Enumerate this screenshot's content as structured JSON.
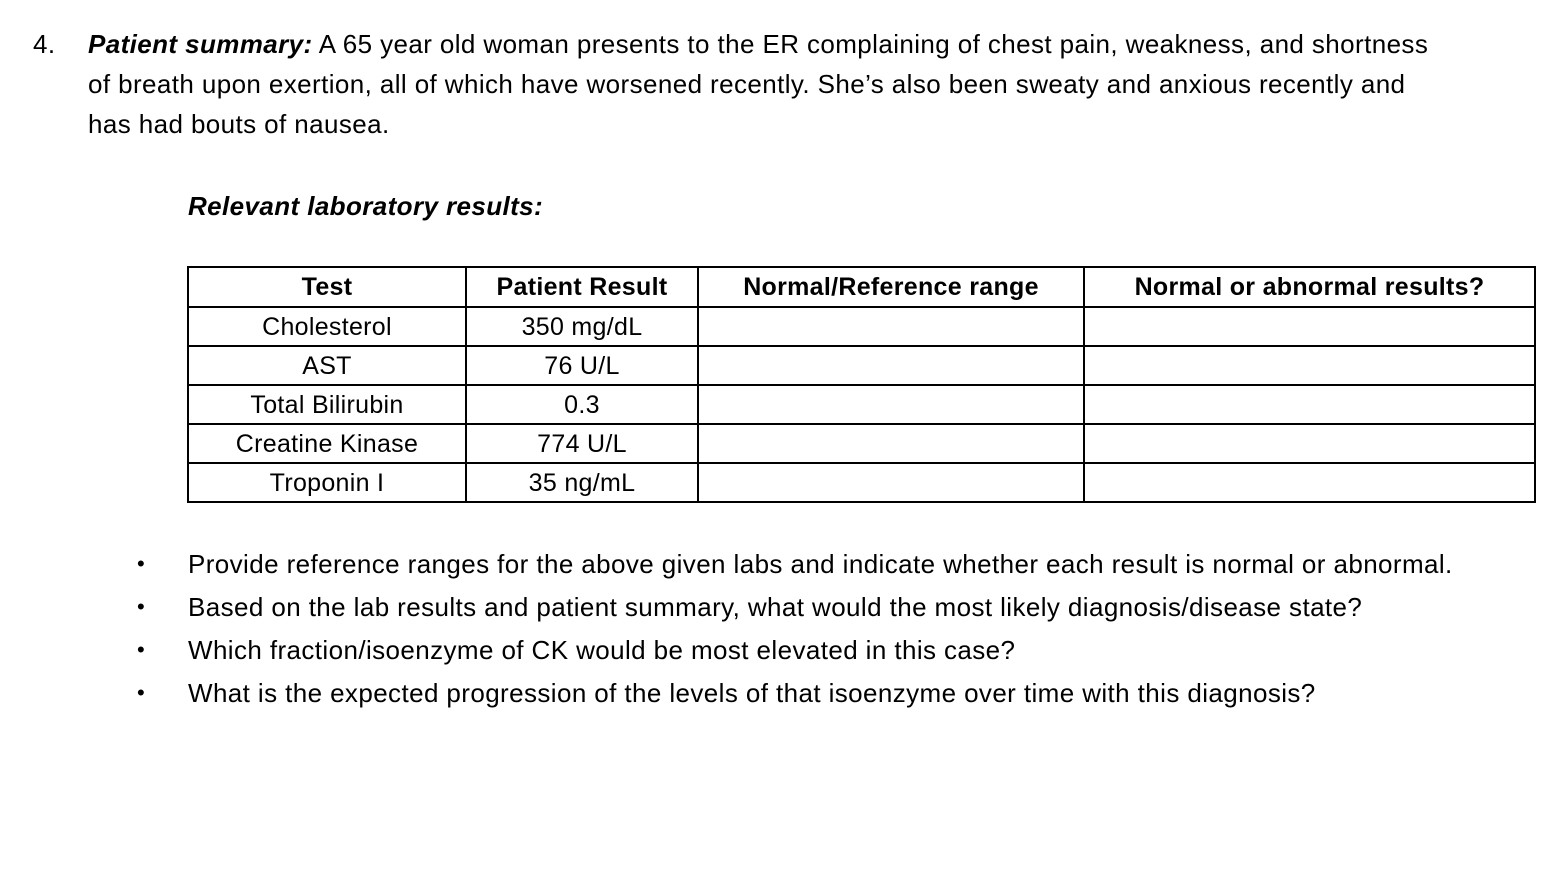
{
  "page": {
    "background_color": "#ffffff",
    "text_color": "#000000",
    "table_border_color": "#000000"
  },
  "question": {
    "number": "4.",
    "summary_label": "Patient summary:",
    "summary_text": "A 65 year old woman presents to the ER complaining of chest pain, weakness, and shortness of breath upon exertion, all of which have worsened recently. She’s also been sweaty and anxious recently and has had bouts of nausea."
  },
  "lab_results": {
    "heading": "Relevant laboratory results:",
    "table": {
      "headers": [
        "Test",
        "Patient Result",
        "Normal/Reference range",
        "Normal or abnormal results?"
      ],
      "rows": [
        {
          "test": "Cholesterol",
          "patient_result": "350 mg/dL",
          "reference_range": "",
          "normal_or_abnormal": ""
        },
        {
          "test": "AST",
          "patient_result": "76 U/L",
          "reference_range": "",
          "normal_or_abnormal": ""
        },
        {
          "test": "Total Bilirubin",
          "patient_result": "0.3",
          "reference_range": "",
          "normal_or_abnormal": ""
        },
        {
          "test": "Creatine Kinase",
          "patient_result": "774 U/L",
          "reference_range": "",
          "normal_or_abnormal": ""
        },
        {
          "test": "Troponin I",
          "patient_result": "35 ng/mL",
          "reference_range": "",
          "normal_or_abnormal": ""
        }
      ]
    }
  },
  "questions": {
    "bullet": "•",
    "items": [
      "Provide reference ranges for the above given labs and indicate whether each result is normal or abnormal.",
      "Based on the lab results and patient summary, what would the most likely diagnosis/disease state?",
      "Which fraction/isoenzyme of CK would be most elevated in this case?",
      "What is the expected progression of the levels of that isoenzyme over time with this diagnosis?"
    ]
  }
}
